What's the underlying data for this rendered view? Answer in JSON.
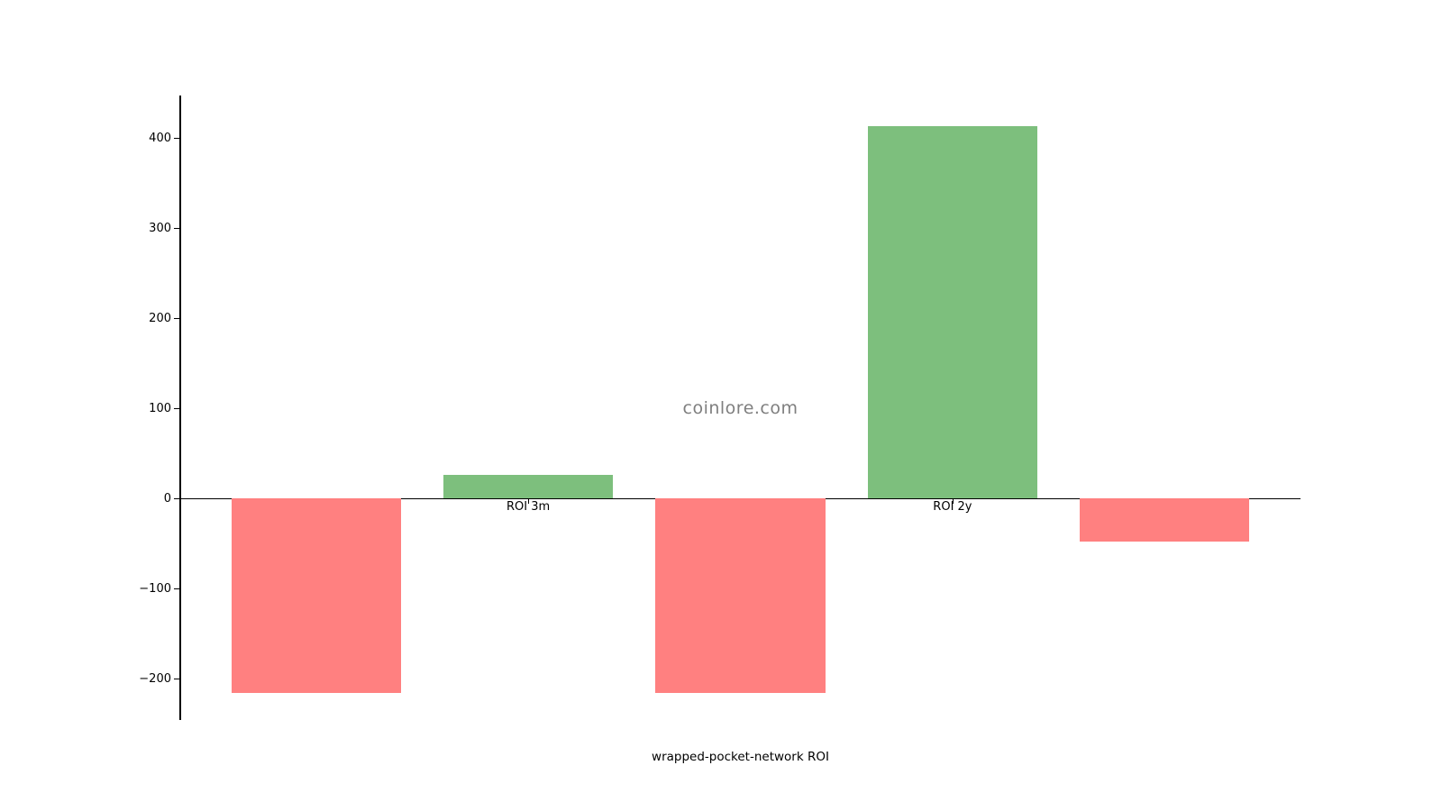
{
  "watermark": "coinlore.com",
  "chart_data": {
    "type": "bar",
    "title": "wrapped-pocket-network ROI",
    "xlabel": "",
    "ylabel": "",
    "categories": [
      "",
      "ROI 3m",
      "",
      "ROI 2y",
      ""
    ],
    "values": [
      -216,
      26,
      -216,
      413,
      -48
    ],
    "yticks": [
      400,
      300,
      200,
      100,
      0,
      -100,
      -200
    ],
    "ylim": [
      -246,
      447
    ],
    "xlim": [
      -0.64,
      4.64
    ],
    "bar_width": 0.8,
    "grid": false,
    "legend_position": "none",
    "colors": {
      "positive": "#7dbf7d",
      "negative": "#ff8080",
      "axis": "#000000",
      "watermark_text": "#7f7f7f"
    },
    "watermark": "coinlore.com"
  }
}
